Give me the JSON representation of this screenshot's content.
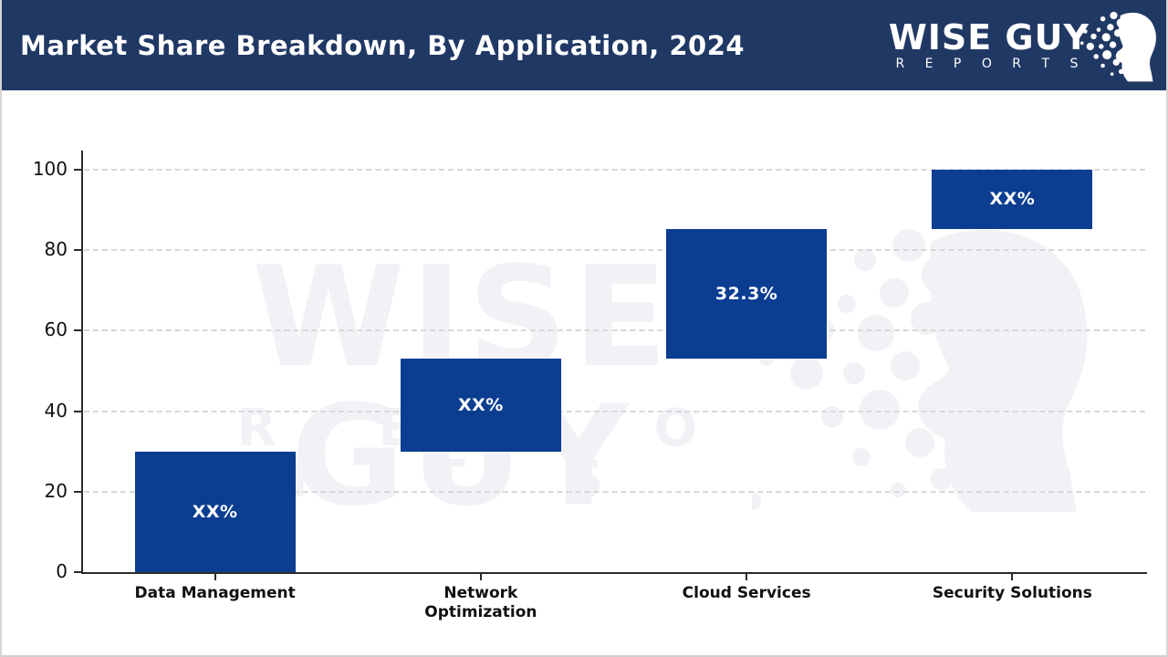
{
  "header": {
    "title": "Market Share Breakdown, By Application, 2024",
    "bg_color": "#203864",
    "logo": {
      "line1": "WISE GUY",
      "line2": "R E P O R T S"
    }
  },
  "watermark": {
    "line1": "WISE GUY",
    "line2": "REPORTS",
    "color": "#f1f2f5"
  },
  "chart_data": {
    "type": "bar",
    "subtype": "floating-waterfall",
    "title": "Market Share Breakdown, By Application, 2024",
    "categories": [
      "Data Management",
      "Network\nOptimization",
      "Cloud Services",
      "Security Solutions"
    ],
    "segments": [
      {
        "category": "Data Management",
        "start": 0,
        "end": 30,
        "label": "XX%"
      },
      {
        "category": "Network Optimization",
        "start": 30,
        "end": 53,
        "label": "XX%"
      },
      {
        "category": "Cloud Services",
        "start": 53,
        "end": 85.3,
        "label": "32.3%"
      },
      {
        "category": "Security Solutions",
        "start": 85.3,
        "end": 100,
        "label": "XX%"
      }
    ],
    "yticks": [
      0,
      20,
      40,
      60,
      80,
      100
    ],
    "ylim": [
      0,
      100
    ],
    "grid": "horizontal-dashed",
    "legend": "none",
    "colors": {
      "bar": "#0b3d91",
      "bar_label": "#ffffff",
      "gridline": "#d8d8d8",
      "axis": "#2b2b2b",
      "tick_label": "#111111"
    }
  }
}
